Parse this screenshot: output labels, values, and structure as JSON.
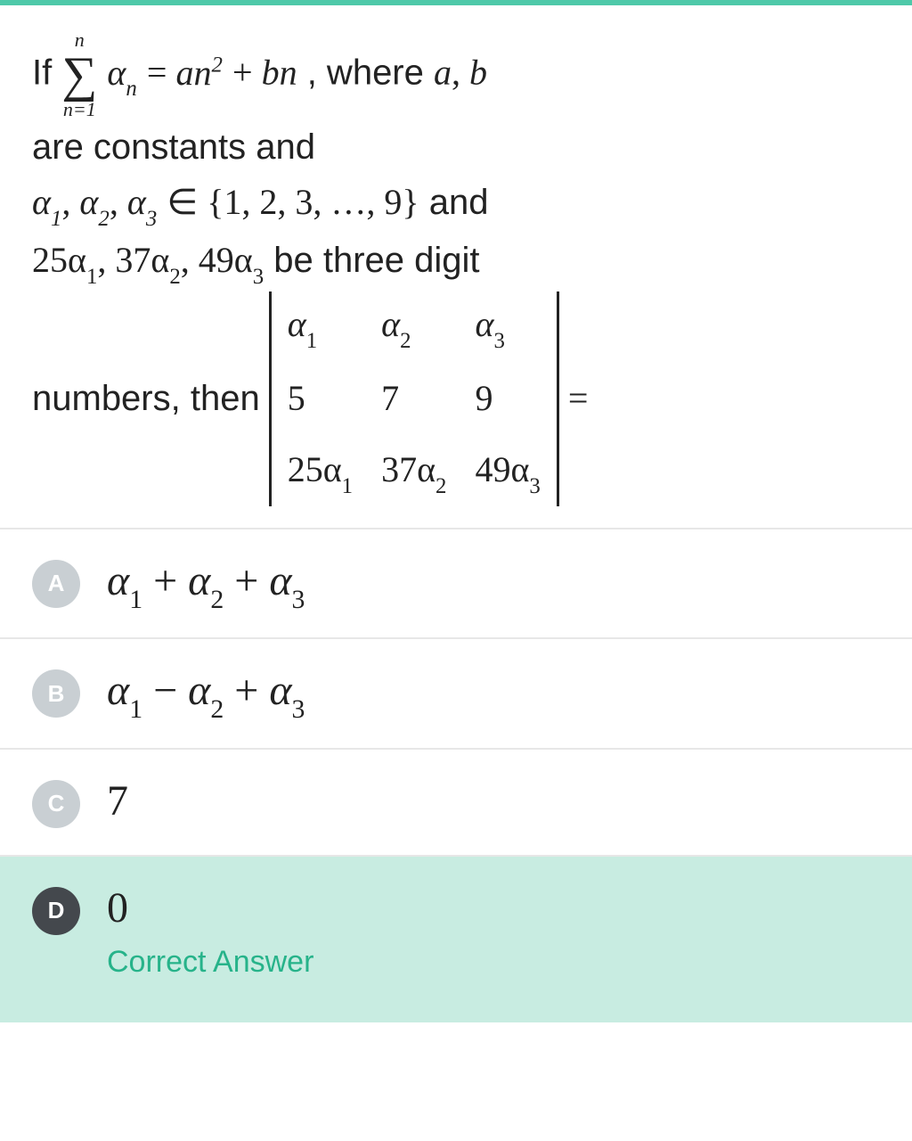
{
  "colors": {
    "top_stripe": "#4ec9a9",
    "divider": "#e7e7e7",
    "badge_grey": "#c9cfd3",
    "badge_dark": "#44484d",
    "correct_bg": "#c8ece1",
    "correct_text": "#27b38a",
    "text": "#222222"
  },
  "question": {
    "line1_plain_if": "If ",
    "sigma_upper": "n",
    "sigma_lower": "n=1",
    "sigma_body": "α",
    "sigma_body_sub": "n",
    "eq": " = ",
    "rhs_a": "an",
    "rhs_sup": "2",
    "rhs_plus": " + ",
    "rhs_bn": "bn",
    "where": " , where ",
    "a": "a",
    "comma": ", ",
    "b": "b",
    "line2": "are constants and",
    "line3_a1": "α",
    "line3_s1": "1",
    "line3_a2": "α",
    "line3_s2": "2",
    "line3_a3": "α",
    "line3_s3": "3",
    "line3_in": " ∈ {1, 2, 3, …, 9}",
    "line3_and": " and",
    "line4_25": "25α",
    "line4_s1": "1",
    "line4_37": "37α",
    "line4_s2": "2",
    "line4_49": "49α",
    "line4_s3": "3",
    "line4_tail": " be three digit",
    "line5_lead": "numbers, then ",
    "det": {
      "r1c1": "α",
      "r1c1s": "1",
      "r1c2": "α",
      "r1c2s": "2",
      "r1c3": "α",
      "r1c3s": "3",
      "r2c1": "5",
      "r2c2": "7",
      "r2c3": "9",
      "r3c1": "25α",
      "r3c1s": "1",
      "r3c2": "37α",
      "r3c2s": "2",
      "r3c3": "49α",
      "r3c3s": "3"
    },
    "det_eq": " ="
  },
  "options": {
    "A": {
      "letter": "A",
      "a1": "α",
      "s1": "1",
      "op1": " + ",
      "a2": "α",
      "s2": "2",
      "op2": " + ",
      "a3": "α",
      "s3": "3"
    },
    "B": {
      "letter": "B",
      "a1": "α",
      "s1": "1",
      "op1": " − ",
      "a2": "α",
      "s2": "2",
      "op2": " + ",
      "a3": "α",
      "s3": "3"
    },
    "C": {
      "letter": "C",
      "text": "7"
    },
    "D": {
      "letter": "D",
      "text": "0",
      "correct_label": "Correct Answer"
    }
  }
}
